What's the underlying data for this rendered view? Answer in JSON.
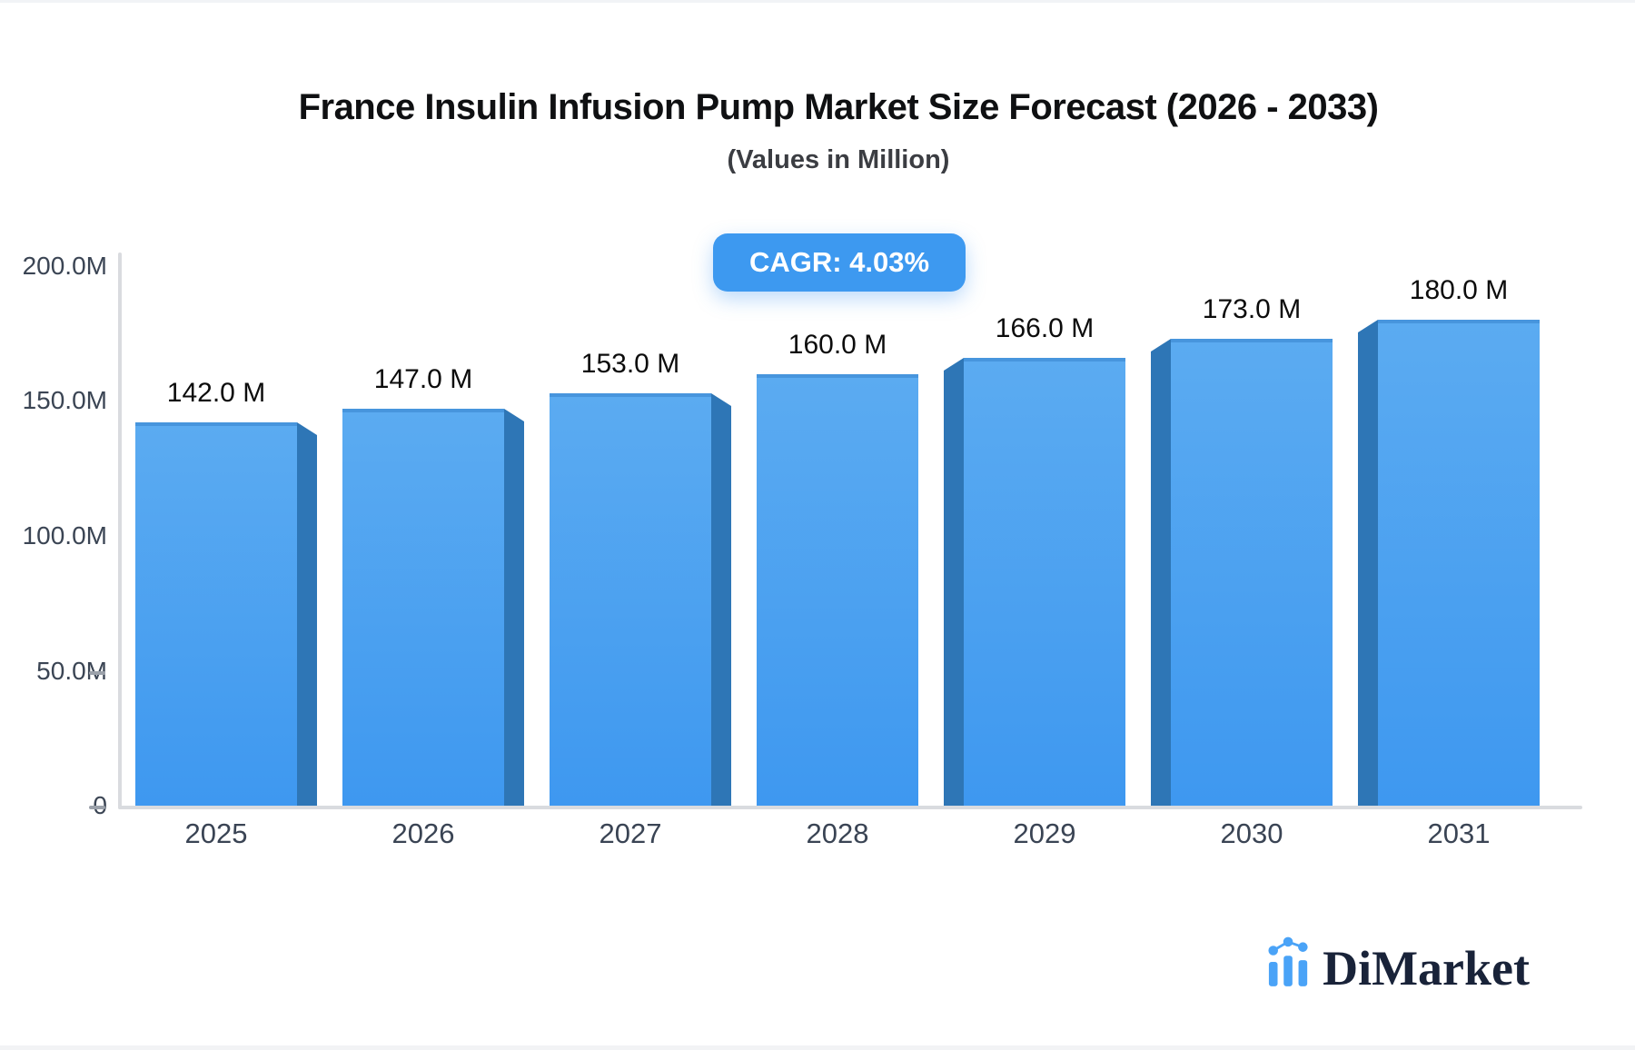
{
  "title": "France Insulin Infusion Pump Market Size Forecast (2026 - 2033)",
  "subtitle": "(Values in Million)",
  "badge": {
    "label": "CAGR: 4.03%"
  },
  "logo": {
    "text": "DiMarket",
    "icon": "mini-bar-chart-logo-icon"
  },
  "colors": {
    "badge_bg": "#3d99f0",
    "bar_face_top": "#5babf1",
    "bar_face_bottom": "#3e98f0",
    "bar_top_edge": "#4795dd",
    "bar_side": "#2e76b6",
    "axis": "#d9dbdf",
    "tick_text": "#3b4554",
    "year_text": "#3a4454",
    "value_text": "#0c0c0c",
    "logo_blue": "#4aa3f7",
    "logo_navy": "#192339"
  },
  "chart_data": {
    "type": "bar",
    "title": "France Insulin Infusion Pump Market Size Forecast (2026 - 2033)",
    "subtitle": "(Values in Million)",
    "annotation": "CAGR: 4.03%",
    "unit": "Million",
    "categories": [
      "2025",
      "2026",
      "2027",
      "2028",
      "2029",
      "2030",
      "2031"
    ],
    "values": [
      142,
      147,
      153,
      160,
      166,
      173,
      180
    ],
    "value_labels": [
      "142.0 M",
      "147.0 M",
      "153.0 M",
      "160.0 M",
      "166.0 M",
      "173.0 M",
      "180.0 M"
    ],
    "ylim": [
      0,
      200
    ],
    "y_ticks": [
      {
        "label": "0",
        "value": 0,
        "dash": true
      },
      {
        "label": "50.0M",
        "value": 50,
        "dash": true
      },
      {
        "label": "100.0M",
        "value": 100,
        "dash": false
      },
      {
        "label": "150.0M",
        "value": 150,
        "dash": false
      },
      {
        "label": "200.0M",
        "value": 200,
        "dash": false
      }
    ],
    "grid": false,
    "legend": false,
    "bar_style": "3d-perspective-toward-center"
  }
}
